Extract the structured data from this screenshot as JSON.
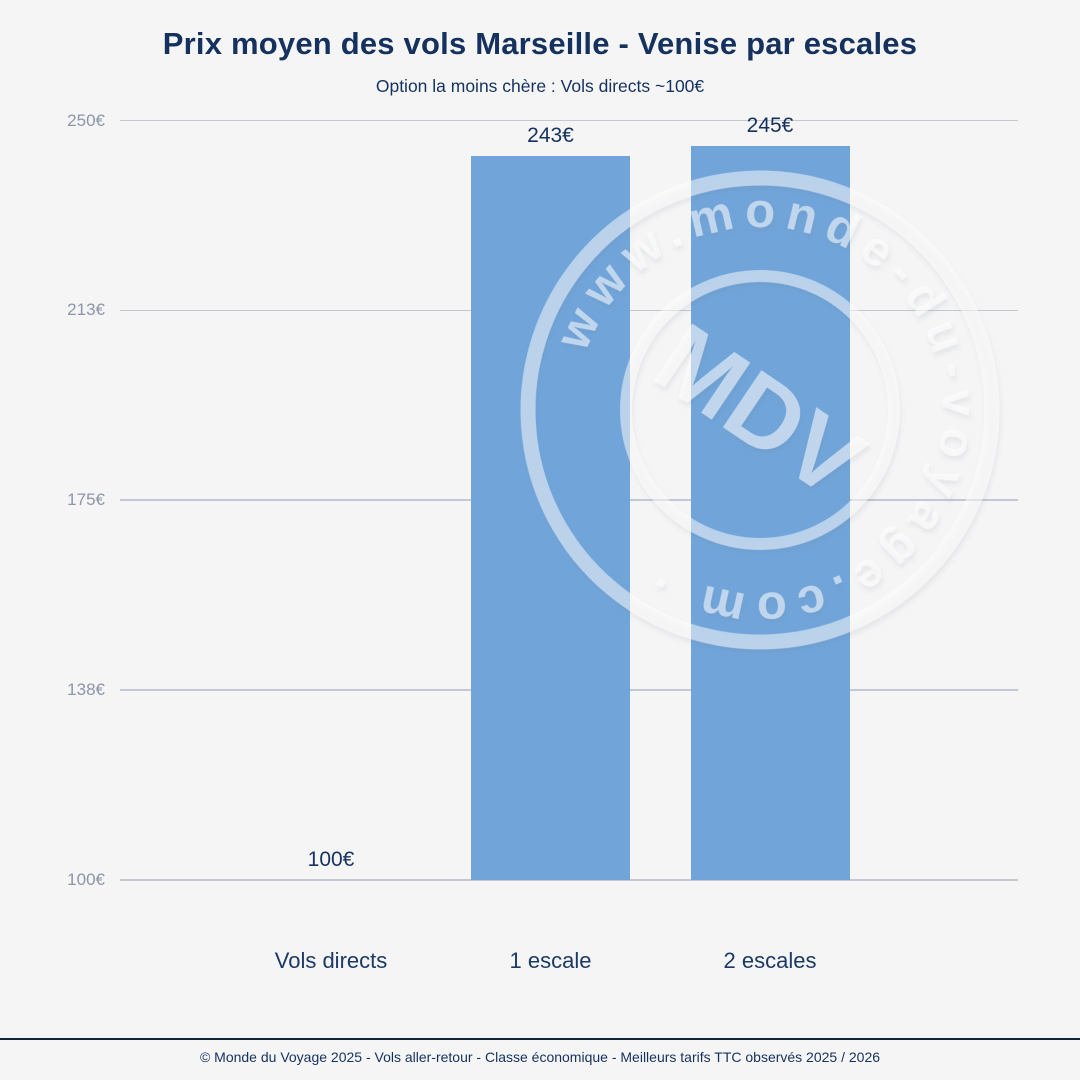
{
  "page": {
    "background": "#f5f5f6",
    "accent_navy": "#15325f"
  },
  "chart_data": {
    "type": "bar",
    "title": "Prix moyen des vols Marseille - Venise par escales",
    "subtitle": "Option la moins chère : Vols directs ~100€",
    "categories": [
      "Vols directs",
      "1 escale",
      "2 escales"
    ],
    "values": [
      100,
      243,
      245
    ],
    "value_labels": [
      "100€",
      "243€",
      "245€"
    ],
    "xlabel": "",
    "ylabel": "",
    "ylim": [
      100,
      250
    ],
    "yticks": [
      {
        "label": "250€",
        "value": 250
      },
      {
        "label": "213€",
        "value": 212.5
      },
      {
        "label": "175€",
        "value": 175
      },
      {
        "label": "138€",
        "value": 137.5
      },
      {
        "label": "100€",
        "value": 100
      }
    ],
    "grid": true,
    "legend": false,
    "bar_color": "#71a5da",
    "grid_color": "#c3c8d4",
    "tick_label_color": "#8d95a8",
    "label_color": "#15325f"
  },
  "watermark": {
    "ring_text": "www.monde-du-voyage.com ·",
    "center_text": "MDV"
  },
  "footer": {
    "text": "© Monde du Voyage 2025 - Vols aller-retour - Classe économique - Meilleurs tarifs TTC observés 2025 / 2026"
  }
}
